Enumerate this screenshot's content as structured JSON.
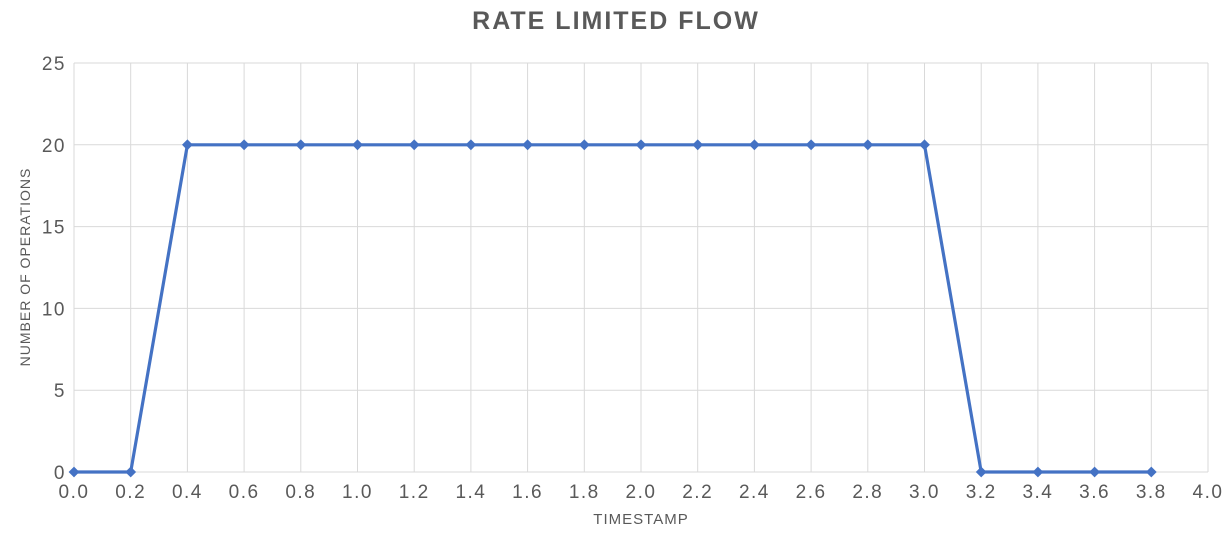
{
  "chart_data": {
    "type": "line",
    "title": "RATE LIMITED FLOW",
    "xlabel": "TIMESTAMP",
    "ylabel": "NUMBER OF OPERATIONS",
    "x": [
      0.0,
      0.2,
      0.4,
      0.6,
      0.8,
      1.0,
      1.2,
      1.4,
      1.6,
      1.8,
      2.0,
      2.2,
      2.4,
      2.6,
      2.8,
      3.0,
      3.2,
      3.4,
      3.6,
      3.8
    ],
    "y": [
      0,
      0,
      20,
      20,
      20,
      20,
      20,
      20,
      20,
      20,
      20,
      20,
      20,
      20,
      20,
      20,
      0,
      0,
      0,
      0
    ],
    "xlim": [
      0.0,
      4.0
    ],
    "ylim": [
      0,
      25
    ],
    "x_tick_labels": [
      "0.0",
      "0.2",
      "0.4",
      "0.6",
      "0.8",
      "1.0",
      "1.2",
      "1.4",
      "1.6",
      "1.8",
      "2.0",
      "2.2",
      "2.4",
      "2.6",
      "2.8",
      "3.0",
      "3.2",
      "3.4",
      "3.6",
      "3.8",
      "4.0"
    ],
    "y_tick_labels": [
      "0",
      "5",
      "10",
      "15",
      "20",
      "25"
    ],
    "grid": true,
    "legend": "none",
    "marker": "diamond",
    "colors": {
      "line": "#4472C4",
      "grid": "#D9D9D9",
      "axis_text": "#595959",
      "title_text": "#595959"
    }
  }
}
